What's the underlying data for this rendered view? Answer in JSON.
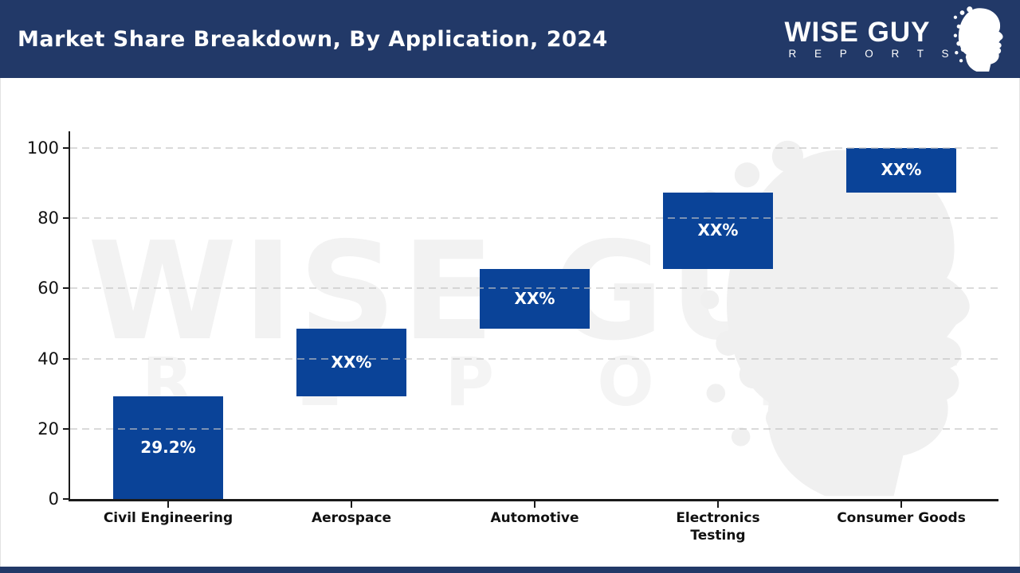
{
  "header": {
    "title": "Market Share Breakdown, By Application, 2024",
    "logo": {
      "line1": "WISE GUY",
      "line2": "R E P O R T S"
    }
  },
  "watermark": {
    "line1": "WISE GUY",
    "line2": "R E P O R T S"
  },
  "chart_data": {
    "type": "bar",
    "subtype": "waterfall",
    "title": "Market Share Breakdown, By Application, 2024",
    "categories": [
      "Civil Engineering",
      "Aerospace",
      "Automotive",
      "Electronics\nTesting",
      "Consumer Goods"
    ],
    "segments": [
      {
        "category": "Civil Engineering",
        "start": 0,
        "end": 29.2,
        "label": "29.2%"
      },
      {
        "category": "Aerospace",
        "start": 29.2,
        "end": 48.5,
        "label": "XX%"
      },
      {
        "category": "Automotive",
        "start": 48.5,
        "end": 65.5,
        "label": "XX%"
      },
      {
        "category": "Electronics Testing",
        "start": 65.5,
        "end": 87.3,
        "label": "XX%"
      },
      {
        "category": "Consumer Goods",
        "start": 87.3,
        "end": 100,
        "label": "XX%"
      }
    ],
    "yticks": [
      0,
      20,
      40,
      60,
      80,
      100
    ],
    "ylim": [
      0,
      105
    ],
    "xlabel": "",
    "ylabel": "",
    "grid": true,
    "legend": false,
    "bar_color": "#0a4398",
    "bar_label_color": "#ffffff"
  },
  "colors": {
    "header_bg": "#223968",
    "footer_bg": "#223968",
    "axis": "#1a1a1a",
    "grid": "#d6d6d6",
    "watermark": "#f2f2f2"
  }
}
